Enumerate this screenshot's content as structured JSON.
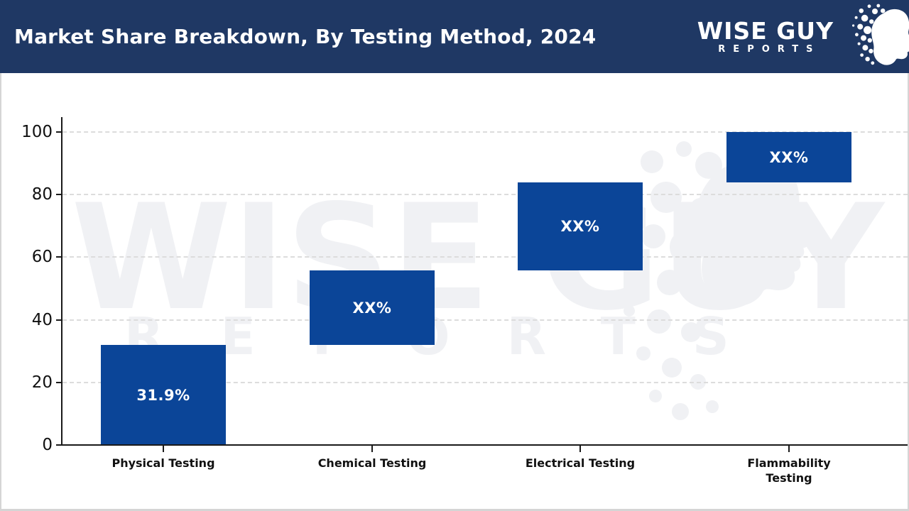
{
  "header": {
    "title": "Market Share Breakdown, By Testing Method, 2024",
    "logo": {
      "line1": "WISE GUY",
      "line2": "REPORTS"
    }
  },
  "watermark": {
    "line1": "WISE GUY",
    "line2": "REPORTS"
  },
  "colors": {
    "header_bg": "#1f3864",
    "bar": "#0b4598",
    "bar_label": "#ffffff",
    "grid": "#dcdcdc",
    "axis": "#1a1a1a",
    "watermark": "#f0f1f4",
    "figure_border": "#d5d5d5",
    "title_text": "#ffffff"
  },
  "chart_data": {
    "type": "bar",
    "subtype": "waterfall",
    "title": "Market Share Breakdown, By Testing Method, 2024",
    "categories": [
      "Physical Testing",
      "Chemical Testing",
      "Electrical Testing",
      "Flammability Testing"
    ],
    "bars": [
      {
        "category": "Physical Testing",
        "start": 0,
        "end": 31.9,
        "label": "31.9%"
      },
      {
        "category": "Chemical Testing",
        "start": 31.9,
        "end": 55.8,
        "label": "XX%"
      },
      {
        "category": "Electrical Testing",
        "start": 55.8,
        "end": 83.9,
        "label": "XX%"
      },
      {
        "category": "Flammability Testing",
        "start": 83.9,
        "end": 100,
        "label": "XX%"
      }
    ],
    "ylim": [
      0,
      100
    ],
    "yticks": [
      0,
      20,
      40,
      60,
      80,
      100
    ],
    "xlabel": "",
    "ylabel": "",
    "grid": "horizontal-dashed",
    "legend": "none"
  }
}
